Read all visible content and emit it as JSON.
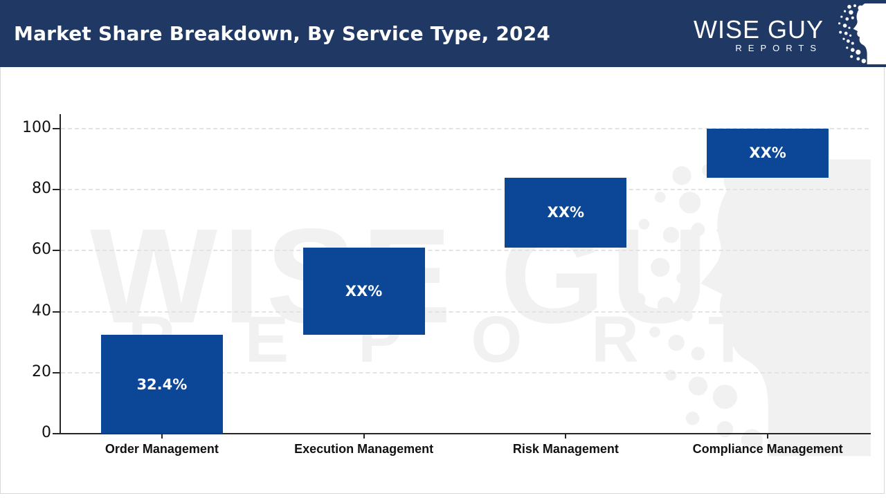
{
  "header": {
    "title": "Market Share Breakdown, By Service Type, 2024",
    "logo": {
      "line1": "WISE GUY",
      "line2": "REPORTS"
    }
  },
  "watermark": {
    "line1": "WISE GUY",
    "line2": "REPORTS"
  },
  "chart_data": {
    "type": "bar",
    "subtype": "stacked-waterfall-segments",
    "title": "Market Share Breakdown, By Service Type, 2024",
    "categories": [
      "Order Management",
      "Execution Management",
      "Risk Management",
      "Compliance Management"
    ],
    "segments": [
      {
        "category": "Order Management",
        "start": 0,
        "end": 32.4,
        "label": "32.4%"
      },
      {
        "category": "Execution Management",
        "start": 32.4,
        "end": 61,
        "label": "XX%"
      },
      {
        "category": "Risk Management",
        "start": 61,
        "end": 84,
        "label": "XX%"
      },
      {
        "category": "Compliance Management",
        "start": 84,
        "end": 100,
        "label": "XX%"
      }
    ],
    "xlabel": "",
    "ylabel": "",
    "ylim": [
      0,
      100
    ],
    "yticks": [
      0,
      20,
      40,
      60,
      80,
      100
    ],
    "grid": "dashed-horizontal",
    "legend": "none",
    "bar_color": "#0b4697",
    "label_color": "#ffffff"
  },
  "colors": {
    "header_bg": "#1f3864",
    "axis": "#262626",
    "gridline": "#e3e3e3",
    "text": "#111111",
    "watermark": "#f1f1f1",
    "page_border": "#d8d8d8"
  }
}
